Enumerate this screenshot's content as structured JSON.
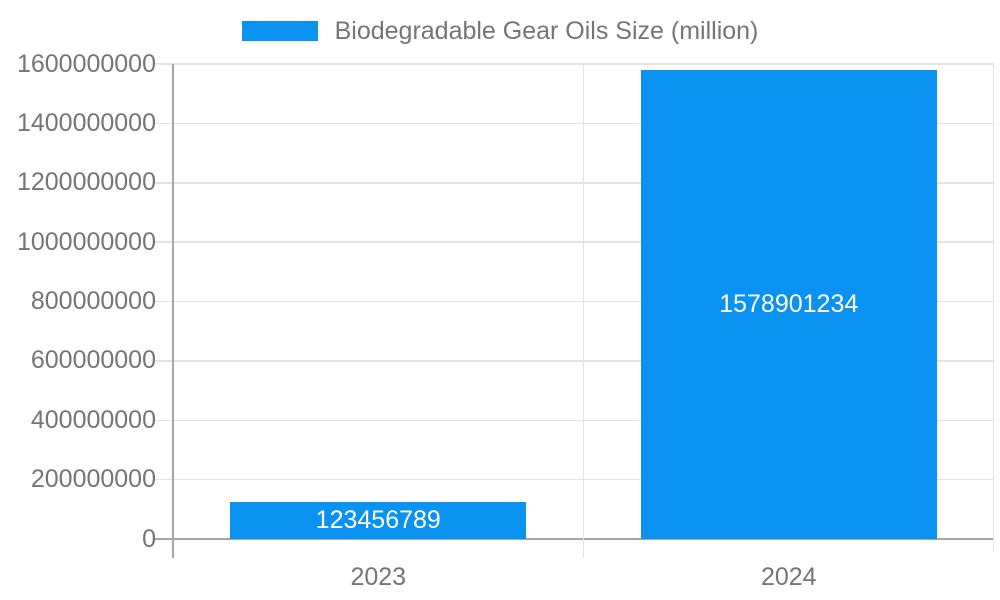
{
  "colors": {
    "bar": "#0a92f2",
    "grid": "#e4e4e4",
    "axis": "#a6a6a6",
    "text": "#757575",
    "bar_label": "#ffffff",
    "background": "#ffffff"
  },
  "chart_data": {
    "type": "bar",
    "legend": "Biodegradable Gear Oils Size (million)",
    "legend_position": "top",
    "categories": [
      "2023",
      "2024"
    ],
    "series": [
      {
        "name": "Biodegradable Gear Oils Size (million)",
        "values": [
          123456789,
          1578901234
        ]
      }
    ],
    "bar_labels": [
      "123456789",
      "1578901234"
    ],
    "title": "",
    "xlabel": "",
    "ylabel": "",
    "ylim": [
      0,
      1600000000
    ],
    "ytick_step": 200000000,
    "ytick_labels": [
      "0",
      "200000000",
      "400000000",
      "600000000",
      "800000000",
      "1000000000",
      "1200000000",
      "1400000000",
      "1600000000"
    ],
    "grid": true
  }
}
